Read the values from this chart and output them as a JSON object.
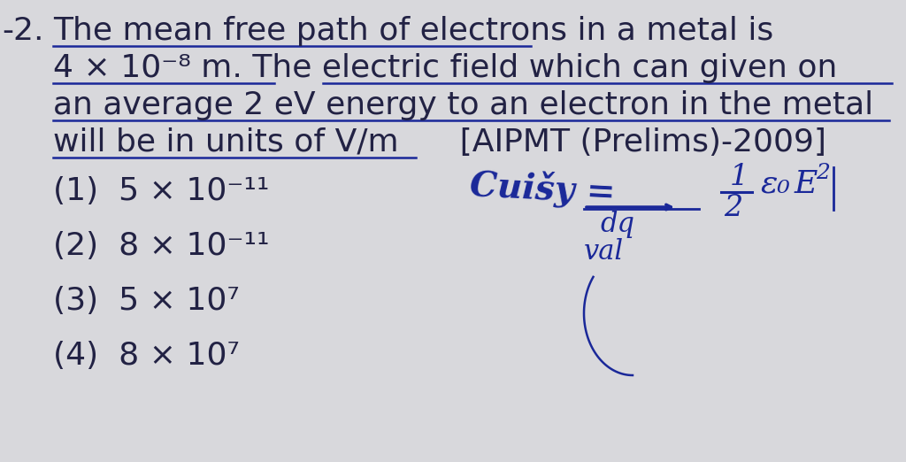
{
  "background_color": "#d8d8dc",
  "text_color": "#222244",
  "hand_color": "#1a2899",
  "question_number": "-2.",
  "q_line1": "The mean free path of electrons in a metal is",
  "q_line2": "4 × 10⁻⁸ m. The electric field which can given on",
  "q_line3": "an average 2 eV energy to an electron in the metal",
  "q_line4": "will be in units of V/m      [AIPMT (Prelims)-2009]",
  "opt1": "(1)  5 × 10⁻¹¹",
  "opt2": "(2)  8 × 10⁻¹¹",
  "opt3": "(3)  5 × 10⁷",
  "opt4": "(4)  8 × 10⁷",
  "font_size": 26,
  "fig_width": 10.24,
  "fig_height": 5.22,
  "dpi": 100
}
